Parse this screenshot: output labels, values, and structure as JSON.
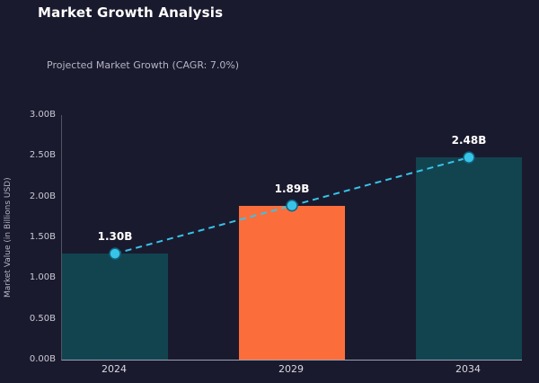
{
  "header": {
    "title": "Market Growth Analysis",
    "subtitle": "Projected Market Growth (CAGR: 7.0%)"
  },
  "colors": {
    "background": "#1a1a2e",
    "teal_bar": "#124450",
    "orange_bar": "#fb6e3c",
    "trend_line": "#38c3e8",
    "marker_fill": "#38c3e8",
    "marker_stroke": "#10637e"
  },
  "chart_data": {
    "type": "bar",
    "title": "Market Growth Analysis",
    "subtitle": "Projected Market Growth (CAGR: 7.0%)",
    "categories": [
      "2024",
      "2029",
      "2034"
    ],
    "values": [
      1.3,
      1.89,
      2.48
    ],
    "value_labels": [
      "1.30B",
      "1.89B",
      "2.48B"
    ],
    "bar_colors": [
      "#124450",
      "#fb6e3c",
      "#124450"
    ],
    "xlabel": "",
    "ylabel": "Market Value (in Billions USD)",
    "ylim": [
      0,
      3.0
    ],
    "yticks": [
      0,
      0.5,
      1.0,
      1.5,
      2.0,
      2.5,
      3.0
    ],
    "ytick_labels": [
      "0.00B",
      "0.50B",
      "1.00B",
      "1.50B",
      "2.00B",
      "2.50B",
      "3.00B"
    ],
    "grid": false,
    "legend": false,
    "overlay": {
      "type": "dashed-line-with-markers",
      "follows": "bar tops"
    }
  }
}
